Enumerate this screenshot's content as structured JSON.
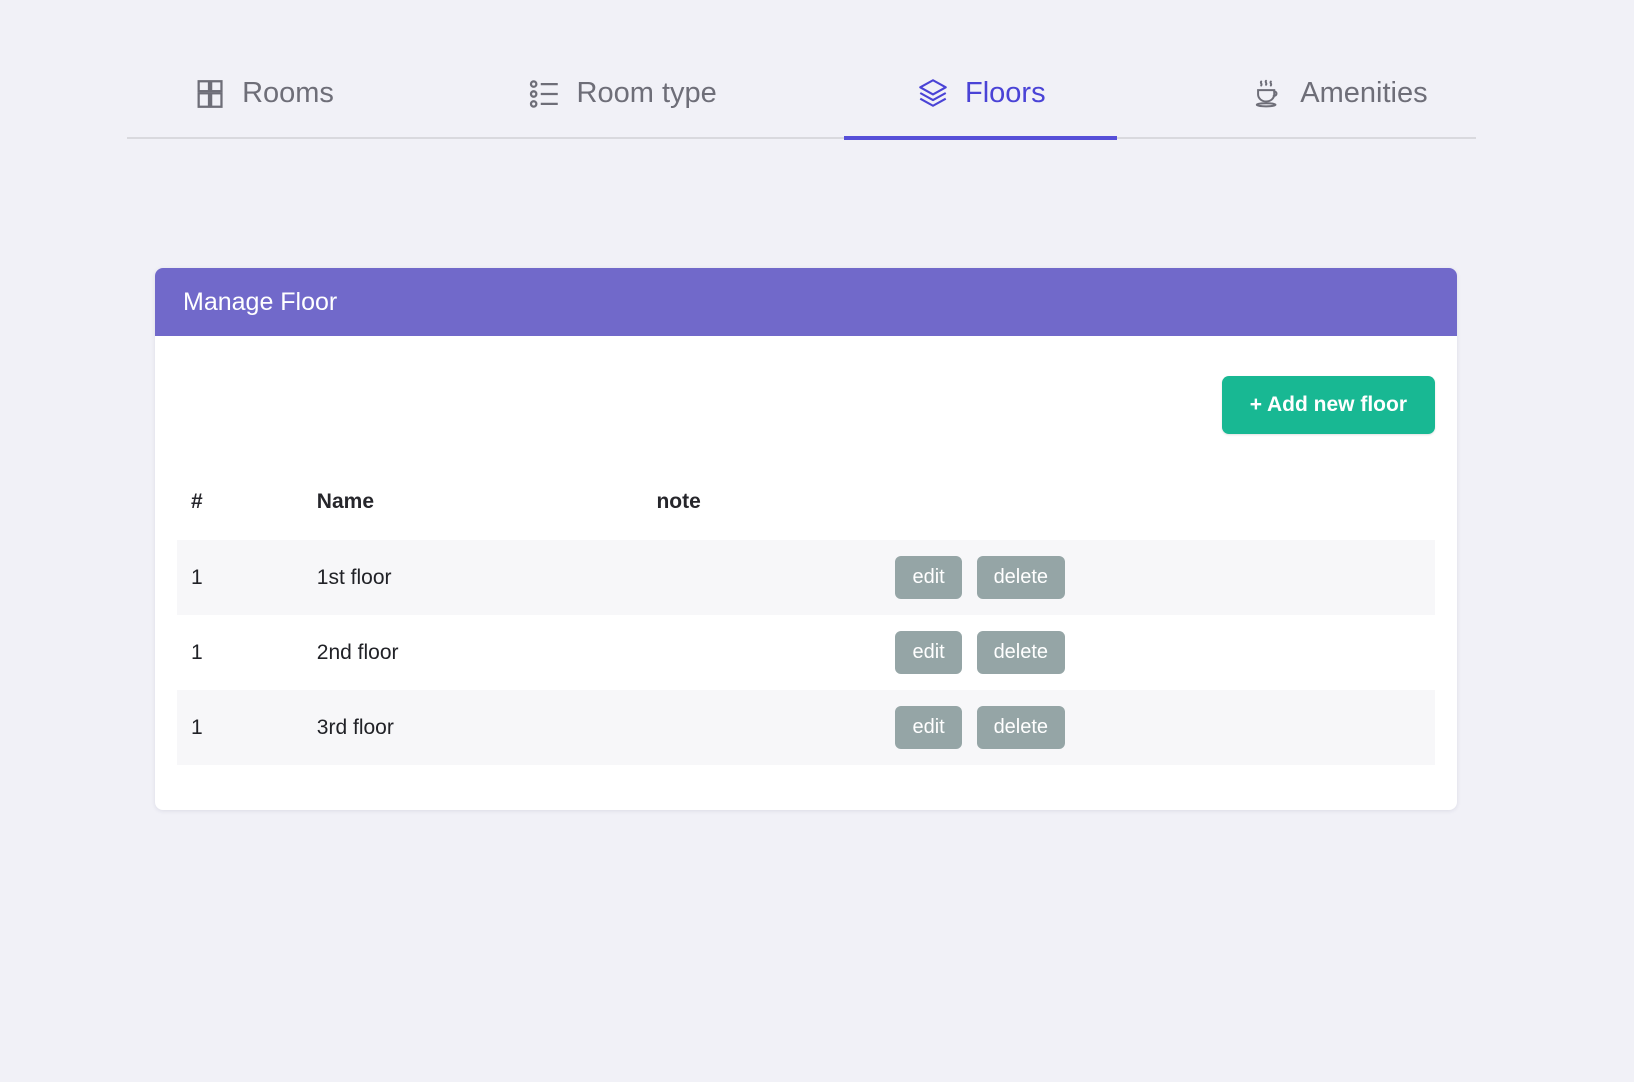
{
  "page": {
    "background": "#f1f1f7"
  },
  "tabs": {
    "active_color": "#4a43d6",
    "underline_color": "#564fd8",
    "inactive_color": "#6e6e78",
    "items": [
      {
        "label": "Rooms",
        "icon": "grid-icon",
        "active": false
      },
      {
        "label": "Room type",
        "icon": "list-icon",
        "active": false
      },
      {
        "label": "Floors",
        "icon": "layers-icon",
        "active": true
      },
      {
        "label": "Amenities",
        "icon": "coffee-icon",
        "active": false
      }
    ]
  },
  "panel": {
    "title": "Manage Floor",
    "header_color": "#7169ca",
    "add_button_label": "+ Add new floor",
    "add_button_color": "#18b893"
  },
  "table": {
    "columns": [
      "#",
      "Name",
      "note",
      ""
    ],
    "action_labels": {
      "edit": "edit",
      "delete": "delete"
    },
    "action_button_color": "#95a5a6",
    "rows": [
      {
        "num": "1",
        "name": "1st floor",
        "note": ""
      },
      {
        "num": "1",
        "name": "2nd floor",
        "note": ""
      },
      {
        "num": "1",
        "name": "3rd floor",
        "note": ""
      }
    ]
  }
}
